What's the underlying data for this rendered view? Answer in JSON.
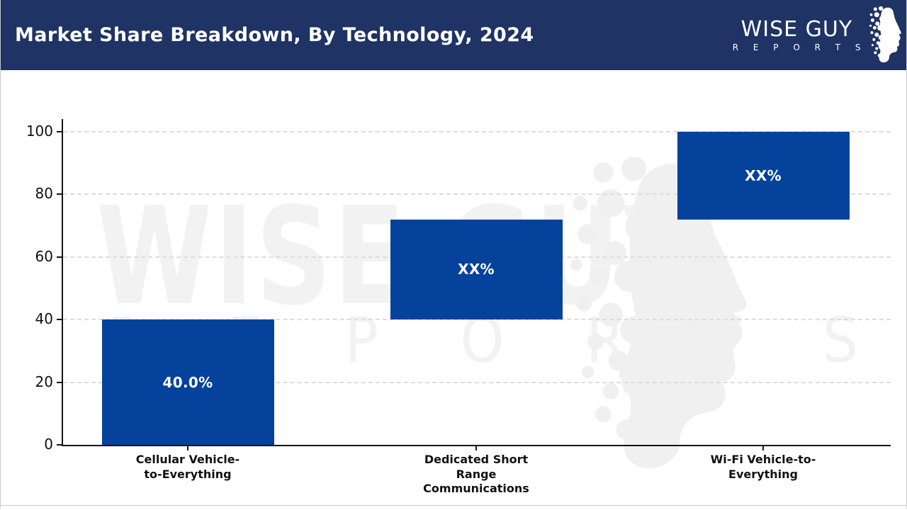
{
  "header": {
    "title": "Market Share Breakdown, By Technology, 2024",
    "bg_color": "#1f3364",
    "logo": {
      "name": "WISE GUY",
      "sub": "R E P O R T S"
    }
  },
  "watermark": {
    "line1": "WISE GUY",
    "line2": "R E P O R T S"
  },
  "chart_data": {
    "type": "bar",
    "subtype": "floating-waterfall",
    "title": "Market Share Breakdown, By Technology, 2024",
    "categories": [
      "Cellular Vehicle-\nto-Everything",
      "Dedicated Short\nRange\nCommunications",
      "Wi-Fi Vehicle-to-\nEverything"
    ],
    "bars": [
      {
        "category": "Cellular Vehicle-to-Everything",
        "start": 0,
        "end": 40,
        "label": "40.0%"
      },
      {
        "category": "Dedicated Short Range Communications",
        "start": 40,
        "end": 72,
        "label": "XX%"
      },
      {
        "category": "Wi-Fi Vehicle-to-Everything",
        "start": 72,
        "end": 100,
        "label": "XX%"
      }
    ],
    "xlabel": "",
    "ylabel": "",
    "ylim": [
      0,
      100
    ],
    "yticks": [
      0,
      20,
      40,
      60,
      80,
      100
    ],
    "grid": "horizontal-dashed",
    "legend": false,
    "bar_color": "#05429b",
    "grid_color": "#dcdcdc",
    "value_label_color": "#ffffff"
  }
}
